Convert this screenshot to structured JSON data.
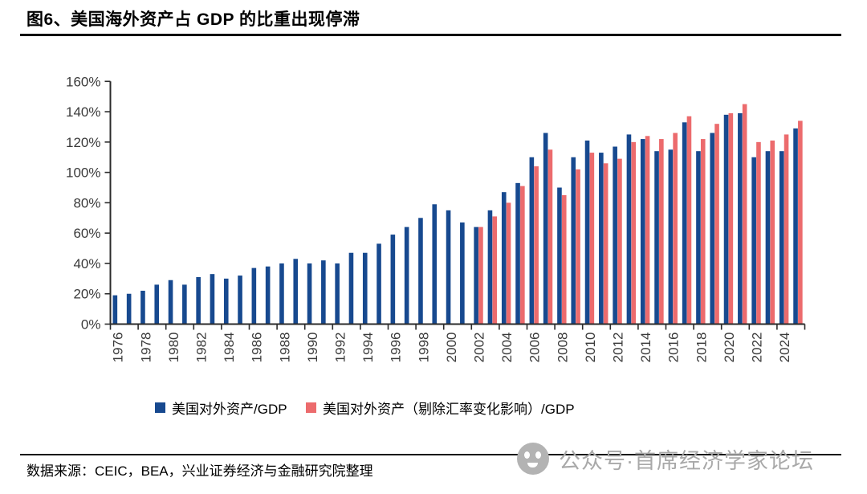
{
  "header": {
    "title": "图6、美国海外资产占 GDP 的比重出现停滞"
  },
  "chart_data": {
    "type": "bar",
    "title": "图6、美国海外资产占 GDP 的比重出现停滞",
    "x": [
      1976,
      1977,
      1978,
      1979,
      1980,
      1981,
      1982,
      1983,
      1984,
      1985,
      1986,
      1987,
      1988,
      1989,
      1990,
      1991,
      1992,
      1993,
      1994,
      1995,
      1996,
      1997,
      1998,
      1999,
      2000,
      2001,
      2002,
      2003,
      2004,
      2005,
      2006,
      2007,
      2008,
      2009,
      2010,
      2011,
      2012,
      2013,
      2014,
      2015,
      2016,
      2017,
      2018,
      2019,
      2020,
      2021,
      2022,
      2023,
      2024,
      2025
    ],
    "series": [
      {
        "name": "美国对外资产/GDP",
        "color": "#17498F",
        "values": [
          19,
          20,
          22,
          26,
          29,
          26,
          31,
          33,
          30,
          32,
          37,
          38,
          40,
          43,
          40,
          42,
          40,
          47,
          47,
          53,
          59,
          64,
          70,
          79,
          75,
          67,
          64,
          75,
          87,
          93,
          110,
          126,
          90,
          110,
          121,
          113,
          117,
          125,
          122,
          114,
          115,
          133,
          114,
          126,
          138,
          139,
          110,
          114,
          114,
          129
        ]
      },
      {
        "name": "美国对外资产（剔除汇率变化影响）/GDP",
        "color": "#EC6B6D",
        "values": [
          null,
          null,
          null,
          null,
          null,
          null,
          null,
          null,
          null,
          null,
          null,
          null,
          null,
          null,
          null,
          null,
          null,
          null,
          null,
          null,
          null,
          null,
          null,
          null,
          null,
          null,
          64,
          71,
          80,
          91,
          104,
          115,
          85,
          102,
          113,
          106,
          109,
          120,
          124,
          122,
          126,
          137,
          122,
          132,
          139,
          145,
          120,
          121,
          125,
          134
        ]
      }
    ],
    "ylim": [
      0,
      160
    ],
    "y_ticks": [
      "0%",
      "20%",
      "40%",
      "60%",
      "80%",
      "100%",
      "120%",
      "140%",
      "160%"
    ],
    "x_tick_labels": [
      "1976",
      "1978",
      "1980",
      "1982",
      "1984",
      "1986",
      "1988",
      "1990",
      "1992",
      "1994",
      "1996",
      "1998",
      "2000",
      "2002",
      "2004",
      "2006",
      "2008",
      "2010",
      "2012",
      "2014",
      "2016",
      "2018",
      "2020",
      "2022",
      "2024"
    ],
    "grid": false,
    "legend_position": "bottom",
    "axis_color": "#2b2b2b",
    "tick_label_color": "#3a3a3a"
  },
  "legend": {
    "items": [
      {
        "label": "美国对外资产/GDP",
        "color": "#17498F"
      },
      {
        "label": "美国对外资产（剔除汇率变化影响）/GDP",
        "color": "#EC6B6D"
      }
    ]
  },
  "footer": {
    "source": "数据来源：CEIC，BEA，兴业证券经济与金融研究院整理",
    "watermark": "公众号·首席经济学家论坛",
    "watermark_icon": "wechat-face-icon"
  }
}
